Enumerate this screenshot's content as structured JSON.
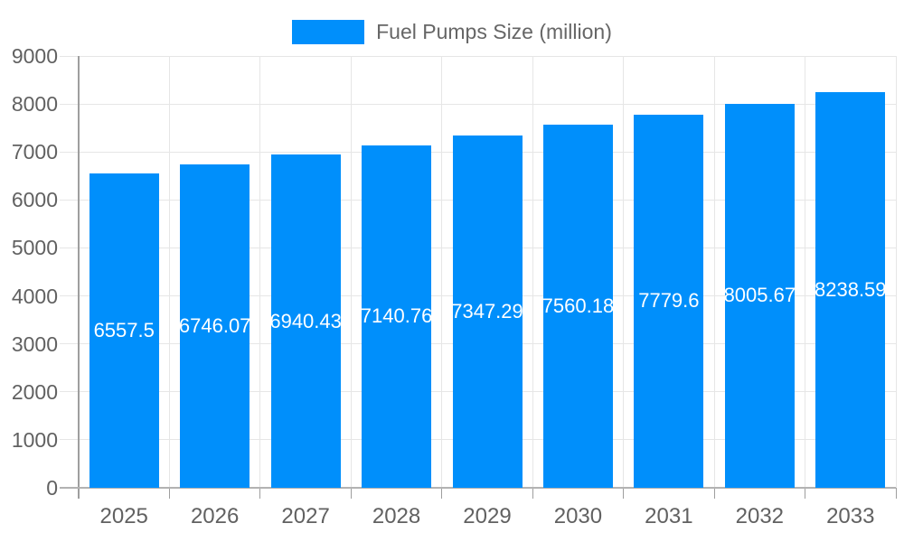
{
  "legend": {
    "label": "Fuel Pumps Size (million)"
  },
  "chart_data": {
    "type": "bar",
    "title": "",
    "xlabel": "",
    "ylabel": "",
    "categories": [
      "2025",
      "2026",
      "2027",
      "2028",
      "2029",
      "2030",
      "2031",
      "2032",
      "2033"
    ],
    "series": [
      {
        "name": "Fuel Pumps Size (million)",
        "values": [
          6557.5,
          6746.07,
          6940.43,
          7140.76,
          7347.29,
          7560.18,
          7779.6,
          8005.67,
          8238.59
        ],
        "value_labels": [
          "6557.5",
          "6746.07",
          "6940.43",
          "7140.76",
          "7347.29",
          "7560.18",
          "7779.6",
          "8005.67",
          "8238.59"
        ]
      }
    ],
    "ylim": [
      0,
      9000
    ],
    "y_ticks": [
      0,
      1000,
      2000,
      3000,
      4000,
      5000,
      6000,
      7000,
      8000,
      9000
    ],
    "grid": true,
    "legend_position": "top",
    "colors": {
      "bar": "#008FFB",
      "data_label": "#FFFFFF",
      "axis_text": "#616161",
      "legend_text": "#666666",
      "gridline": "#E6E6E6",
      "axis_line": "#9E9E9E",
      "x_axis_line": "#B2B2B2"
    }
  }
}
